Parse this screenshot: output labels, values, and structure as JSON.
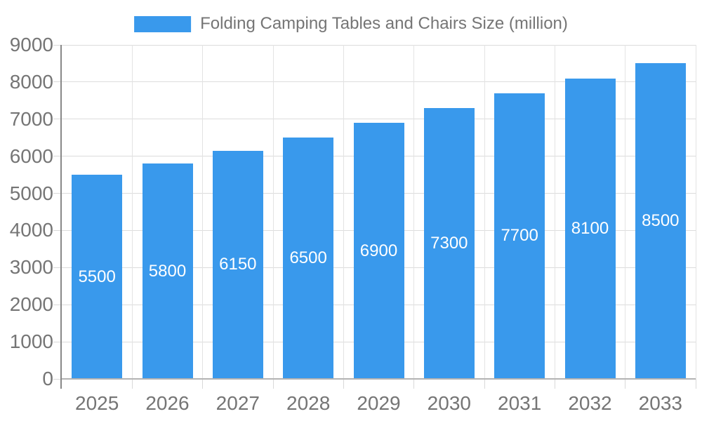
{
  "chart_data": {
    "type": "bar",
    "title": "Folding Camping Tables and Chairs Size (million)",
    "categories": [
      "2025",
      "2026",
      "2027",
      "2028",
      "2029",
      "2030",
      "2031",
      "2032",
      "2033"
    ],
    "series": [
      {
        "name": "Folding Camping Tables and Chairs Size (million)",
        "values": [
          5500,
          5800,
          6150,
          6500,
          6900,
          7300,
          7700,
          8100,
          8500
        ]
      }
    ],
    "xlabel": "",
    "ylabel": "",
    "ylim": [
      0,
      9000
    ],
    "ytick_interval": 1000,
    "ytick_labels": [
      "0",
      "1000",
      "2000",
      "3000",
      "4000",
      "5000",
      "6000",
      "7000",
      "8000",
      "9000"
    ],
    "grid": true,
    "value_labels": "inside-center",
    "legend_position": "top-center",
    "colors": {
      "bar": "#3999EC",
      "axis_text": "#757575",
      "title_text": "#757575",
      "bar_value_text": "#FFFFFF",
      "gridline_h": "#DCDCDC",
      "gridline_v": "#E3E3E3",
      "tick": "#D9D9D9",
      "axis_line": "#888888",
      "baseline": "#B3B3B3",
      "background": "#FFFFFF"
    }
  }
}
